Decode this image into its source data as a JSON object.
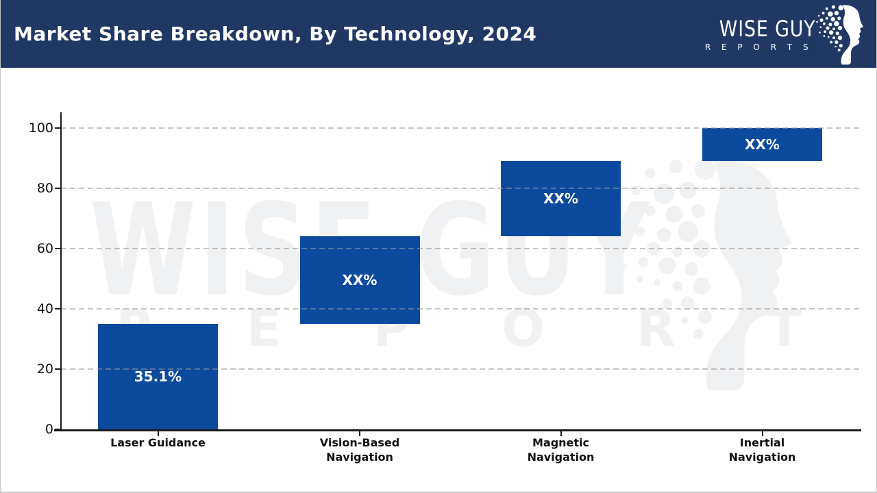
{
  "header": {
    "title": "Market Share Breakdown, By Technology, 2024",
    "logo": {
      "line1": "WISE GUY",
      "line2": "R E P O R T S"
    }
  },
  "watermark": {
    "line1": "WISE GUY",
    "line2": "R E P O R T S"
  },
  "colors": {
    "header_bg": "#203864",
    "bar": "#0c4a9e",
    "bar_label": "#ffffff",
    "watermark": "#f0f1f3",
    "grid": "rgba(150,150,150,0.55)",
    "axis": "#1a1a1a",
    "page_border": "#c8c8c8"
  },
  "chart_data": {
    "type": "bar",
    "subtype": "waterfall",
    "title": "Market Share Breakdown, By Technology, 2024",
    "categories": [
      {
        "name": "Laser Guidance",
        "lines": [
          "Laser Guidance"
        ]
      },
      {
        "name": "Vision-Based Navigation",
        "lines": [
          "Vision-Based",
          "Navigation"
        ]
      },
      {
        "name": "Magnetic Navigation",
        "lines": [
          "Magnetic",
          "Navigation"
        ]
      },
      {
        "name": "Inertial Navigation",
        "lines": [
          "Inertial",
          "Navigation"
        ]
      }
    ],
    "bars": [
      {
        "label": "35.1%",
        "start": 0,
        "end": 35.1
      },
      {
        "label": "XX%",
        "start": 35.1,
        "end": 64.2
      },
      {
        "label": "XX%",
        "start": 64.2,
        "end": 89.2
      },
      {
        "label": "XX%",
        "start": 89.2,
        "end": 100
      }
    ],
    "yticks": [
      0,
      20,
      40,
      60,
      80,
      100
    ],
    "ylim": [
      0,
      105
    ],
    "xlabel": "",
    "ylabel": "",
    "grid": "dashed-horizontal",
    "legend": "none"
  }
}
